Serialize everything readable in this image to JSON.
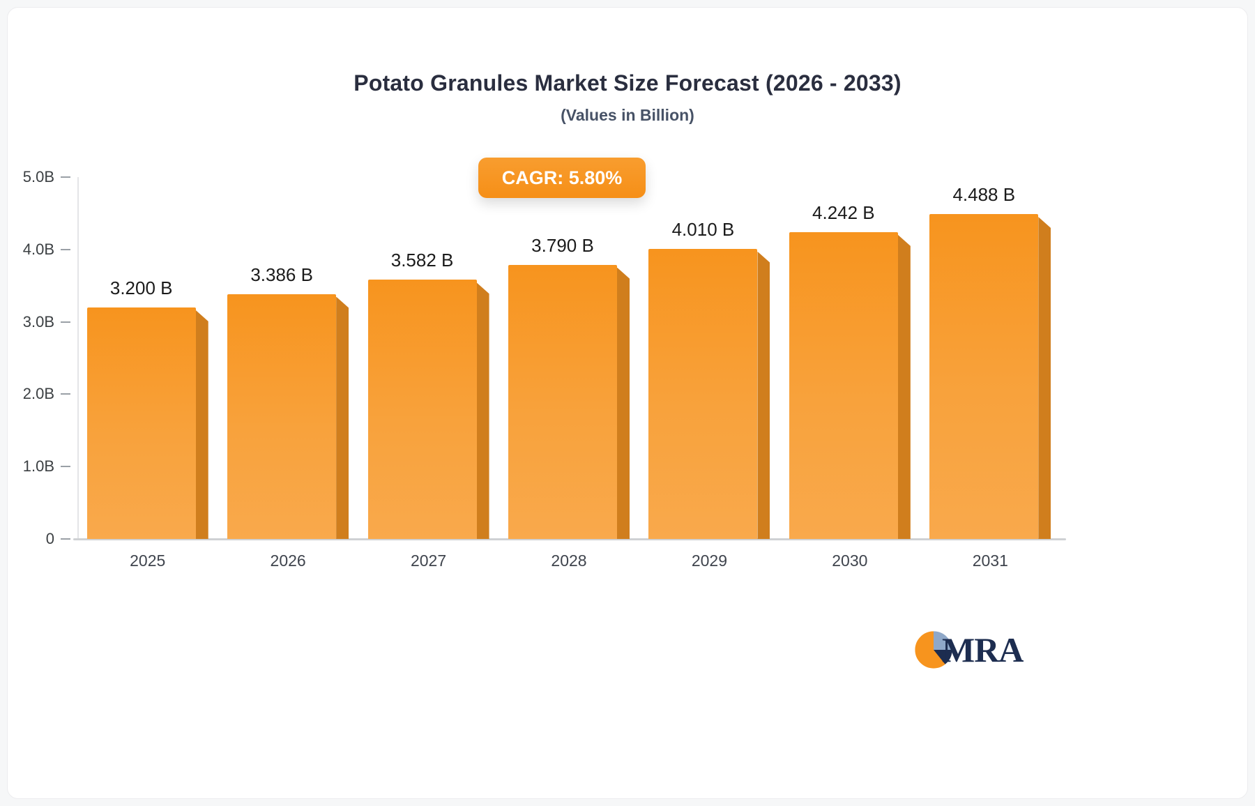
{
  "header": {
    "title": "Potato Granules Market Size Forecast (2026 - 2033)",
    "subtitle": "(Values in Billion)"
  },
  "badge": {
    "label": "CAGR: 5.80%",
    "color": "#f7941e"
  },
  "chart_data": {
    "type": "bar",
    "title": "Potato Granules Market Size Forecast (2026 - 2033)",
    "subtitle": "(Values in Billion)",
    "categories": [
      "2025",
      "2026",
      "2027",
      "2028",
      "2029",
      "2030",
      "2031"
    ],
    "values": [
      3.2,
      3.386,
      3.582,
      3.79,
      4.01,
      4.242,
      4.488
    ],
    "value_labels": [
      "3.200 B",
      "3.386 B",
      "3.582 B",
      "3.790 B",
      "4.010 B",
      "4.242 B",
      "4.488 B"
    ],
    "ylabel": "",
    "xlabel": "",
    "ylim": [
      0,
      5
    ],
    "yticks": [
      "5.0B",
      "4.0B",
      "3.0B",
      "2.0B",
      "1.0B",
      "0"
    ],
    "grid": false,
    "legend": false,
    "bar_color": "#f7941e",
    "bar_side_color": "#d07e1d",
    "cagr_annotation": "CAGR: 5.80%"
  },
  "logo": {
    "text": "MRA",
    "icon": "pie-logo-icon",
    "colors": {
      "orange": "#f7941e",
      "navy": "#1d2d50",
      "steel_blue": "#8fa8c8"
    }
  }
}
